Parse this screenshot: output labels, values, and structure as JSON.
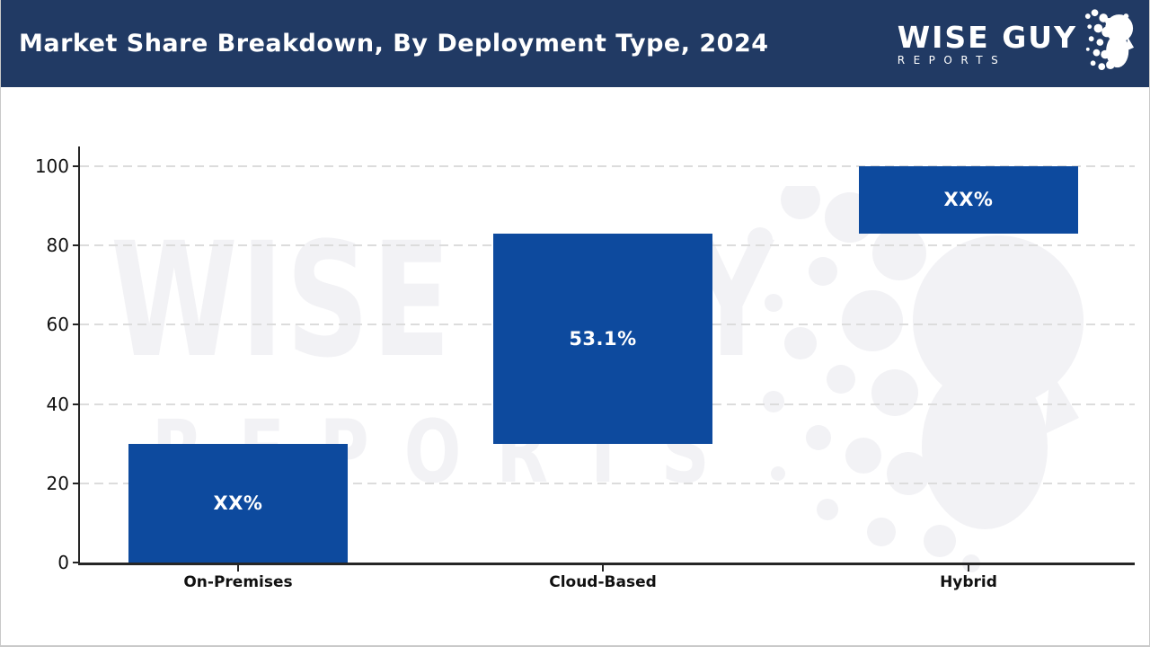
{
  "header": {
    "title": "Market Share Breakdown, By Deployment Type, 2024",
    "logo": {
      "wordmark": "WISE GUY",
      "subtext": "REPORTS"
    }
  },
  "watermark": {
    "wordmark": "WISE GUY",
    "subtext": "REPORTS"
  },
  "colors": {
    "header_bg": "#213a64",
    "bar": "#0d4a9e",
    "bar_label": "#ffffff",
    "axis": "#262626",
    "gridline": "#dcdcdc",
    "tick_label": "#111111",
    "watermark": "#f2f2f5"
  },
  "chart_data": {
    "type": "bar",
    "subtype": "floating-segment-bar (waterfall-style market share breakdown)",
    "title": "Market Share Breakdown, By Deployment Type, 2024",
    "categories": [
      "On-Premises",
      "Cloud-Based",
      "Hybrid"
    ],
    "bars": [
      {
        "category": "On-Premises",
        "start": 0,
        "end": 30,
        "label": "XX%"
      },
      {
        "category": "Cloud-Based",
        "start": 30,
        "end": 83.1,
        "label": "53.1%"
      },
      {
        "category": "Hybrid",
        "start": 83.1,
        "end": 100,
        "label": "XX%"
      }
    ],
    "xlabel": "",
    "ylabel": "",
    "yticks": [
      0,
      20,
      40,
      60,
      80,
      100
    ],
    "ylim": [
      0,
      105
    ],
    "grid": {
      "horizontal": true,
      "style": "dashed"
    },
    "legend": null
  }
}
